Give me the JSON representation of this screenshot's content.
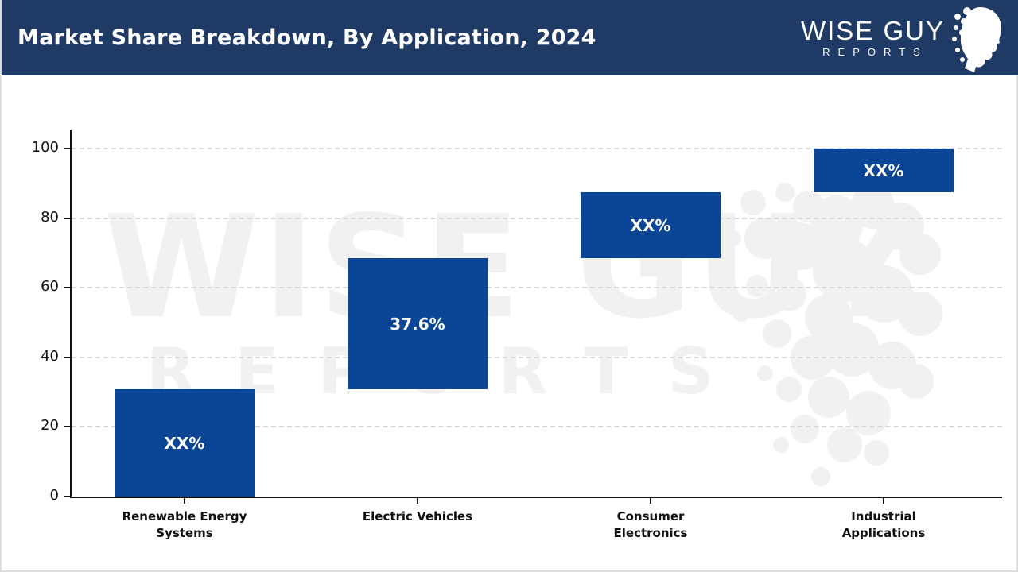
{
  "header": {
    "title": "Market Share Breakdown, By Application, 2024",
    "logo_line1": "WISE GUY",
    "logo_line2": "REPORTS"
  },
  "watermark": {
    "line1": "WISE GUY",
    "line2": "REPORTS"
  },
  "colors": {
    "header_bg": "#203a66",
    "bar": "#0b4596",
    "grid": "#d9d9d9",
    "watermark": "#f1f1f2",
    "axis": "#111111",
    "bar_label": "#ffffff"
  },
  "chart_data": {
    "type": "waterfall",
    "title": "Market Share Breakdown, By Application, 2024",
    "categories": [
      "Renewable Energy Systems",
      "Electric Vehicles",
      "Consumer Electronics",
      "Industrial Applications"
    ],
    "segments": [
      {
        "category": "Renewable Energy Systems",
        "start": 0,
        "end": 30.8,
        "label": "XX%"
      },
      {
        "category": "Electric Vehicles",
        "start": 30.8,
        "end": 68.4,
        "label": "37.6%"
      },
      {
        "category": "Consumer Electronics",
        "start": 68.4,
        "end": 87.4,
        "label": "XX%"
      },
      {
        "category": "Industrial Applications",
        "start": 87.4,
        "end": 100,
        "label": "XX%"
      }
    ],
    "y_ticks": [
      0,
      20,
      40,
      60,
      80,
      100
    ],
    "ylim": [
      0,
      105
    ],
    "xlabel": "",
    "ylabel": "",
    "grid": "horizontal-dashed",
    "legend": "none"
  }
}
